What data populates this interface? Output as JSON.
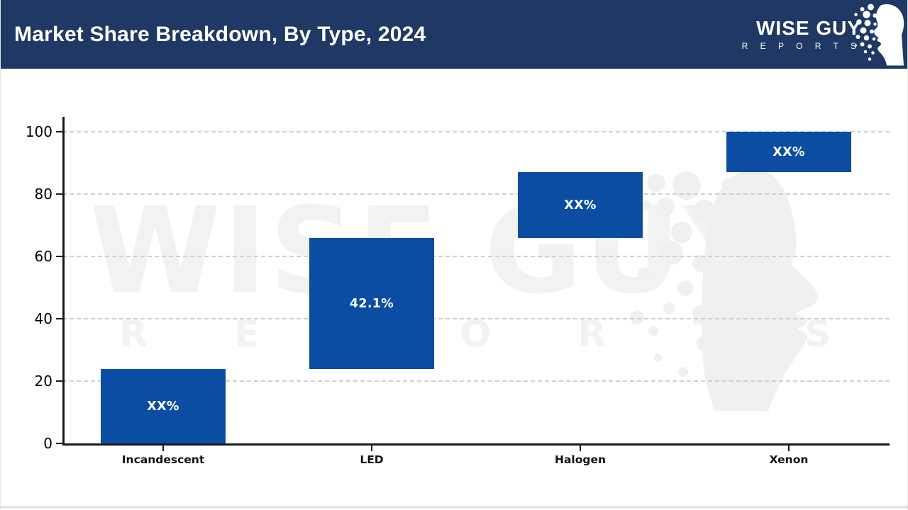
{
  "header": {
    "title": "Market Share Breakdown, By Type, 2024",
    "logo": {
      "line1": "WISE GUY",
      "line2": "R E P O R T S"
    }
  },
  "watermark": {
    "line1": "WISE GUY",
    "line2": "R E P O R T S"
  },
  "colors": {
    "header_bg": "#1f3864",
    "bar": "#0b4da2",
    "bar_label": "#ffffff",
    "grid": "#cfcfcf",
    "axis": "#1a1a1a",
    "watermark": "#f0f0f0"
  },
  "chart_data": {
    "type": "bar",
    "subtype": "waterfall",
    "title": "Market Share Breakdown, By Type, 2024",
    "categories": [
      "Incandescent",
      "LED",
      "Halogen",
      "Xenon"
    ],
    "bars": [
      {
        "category": "Incandescent",
        "start": 0,
        "end": 23.8,
        "value": 23.8,
        "label": "XX%"
      },
      {
        "category": "LED",
        "start": 23.8,
        "end": 65.9,
        "value": 42.1,
        "label": "42.1%"
      },
      {
        "category": "Halogen",
        "start": 65.9,
        "end": 87.0,
        "value": 21.1,
        "label": "XX%"
      },
      {
        "category": "Xenon",
        "start": 87.0,
        "end": 100.0,
        "value": 13.0,
        "label": "XX%"
      }
    ],
    "xlabel": "",
    "ylabel": "",
    "ylim": [
      0,
      100
    ],
    "yticks": [
      0,
      20,
      40,
      60,
      80,
      100
    ],
    "grid": "horizontal-dashed",
    "legend": "none"
  }
}
